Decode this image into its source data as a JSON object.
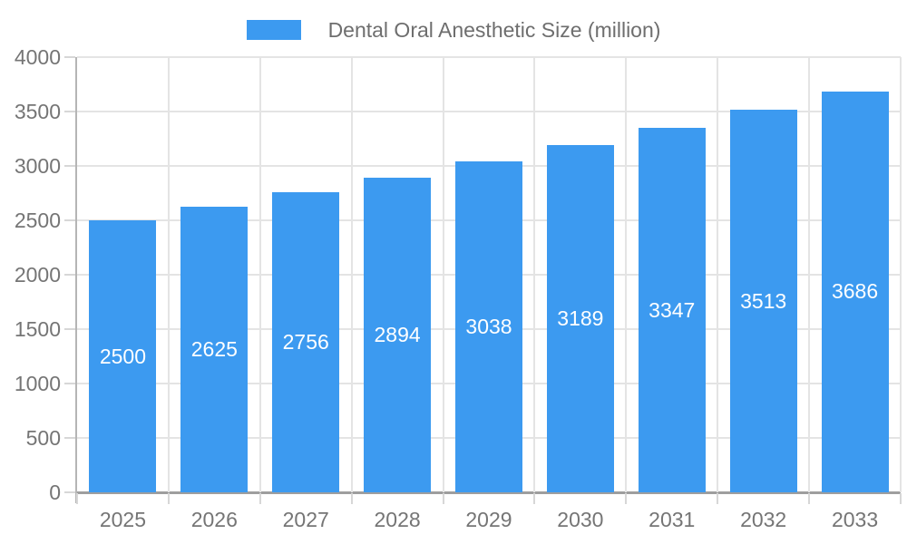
{
  "chart_data": {
    "type": "bar",
    "title": "Dental Oral Anesthetic Size (million)",
    "categories": [
      "2025",
      "2026",
      "2027",
      "2028",
      "2029",
      "2030",
      "2031",
      "2032",
      "2033"
    ],
    "values": [
      2500,
      2625,
      2756,
      2894,
      3038,
      3189,
      3347,
      3513,
      3686
    ],
    "xlabel": "",
    "ylabel": "",
    "ylim": [
      0,
      4000
    ],
    "ytick_step": 500,
    "ytick_labels": [
      "0",
      "500",
      "1000",
      "1500",
      "2000",
      "2500",
      "3000",
      "3500",
      "4000"
    ],
    "bar_labels_inside": true,
    "grid": true,
    "legend_position": "top",
    "colors": {
      "bar": "#3c9af0",
      "bar_label_text": "#ffffff",
      "axis_label_text": "#757575",
      "legend_text": "#6e6e6e",
      "gridline": "#e4e4e4",
      "axis_line": "#9e9e9e"
    }
  }
}
